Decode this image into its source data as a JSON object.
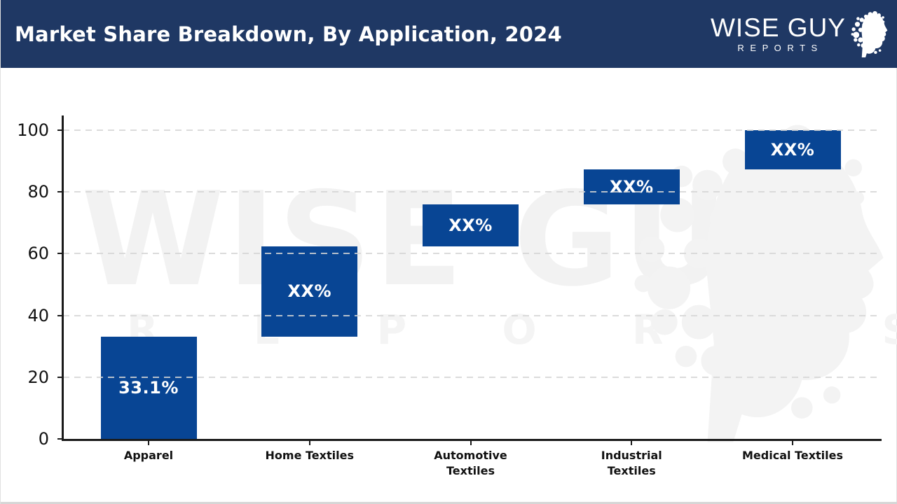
{
  "header": {
    "title": "Market Share Breakdown, By Application, 2024",
    "logo": {
      "line1": "WISE GUY",
      "line2": "R E P O R T S"
    }
  },
  "watermark": {
    "line1": "WISE GUY",
    "line2": "R E P O R T S"
  },
  "colors": {
    "header_bg": "#1F3864",
    "bar_fill": "#084594",
    "grid": "#d5d5d5",
    "axis": "#1a1a1a",
    "bar_label_text": "#ffffff",
    "watermark": "#f2f2f2"
  },
  "chart_data": {
    "type": "bar",
    "subtype": "waterfall",
    "title": "Market Share Breakdown, By Application, 2024",
    "categories": [
      "Apparel",
      "Home Textiles",
      "Automotive\nTextiles",
      "Industrial\nTextiles",
      "Medical Textiles"
    ],
    "segments": [
      {
        "category": "Apparel",
        "start": 0,
        "end": 33.1,
        "label": "33.1%"
      },
      {
        "category": "Home Textiles",
        "start": 33.1,
        "end": 62.4,
        "label": "XX%"
      },
      {
        "category": "Automotive Textiles",
        "start": 62.4,
        "end": 76.0,
        "label": "XX%"
      },
      {
        "category": "Industrial Textiles",
        "start": 76.0,
        "end": 87.3,
        "label": "XX%"
      },
      {
        "category": "Medical Textiles",
        "start": 87.3,
        "end": 100.0,
        "label": "XX%"
      }
    ],
    "yticks": [
      0,
      20,
      40,
      60,
      80,
      100
    ],
    "ylim": [
      0,
      104.8
    ],
    "xlabel": "",
    "ylabel": "",
    "grid": "horizontal-dashed",
    "gridlines_above_bars": true,
    "legend": "none"
  }
}
